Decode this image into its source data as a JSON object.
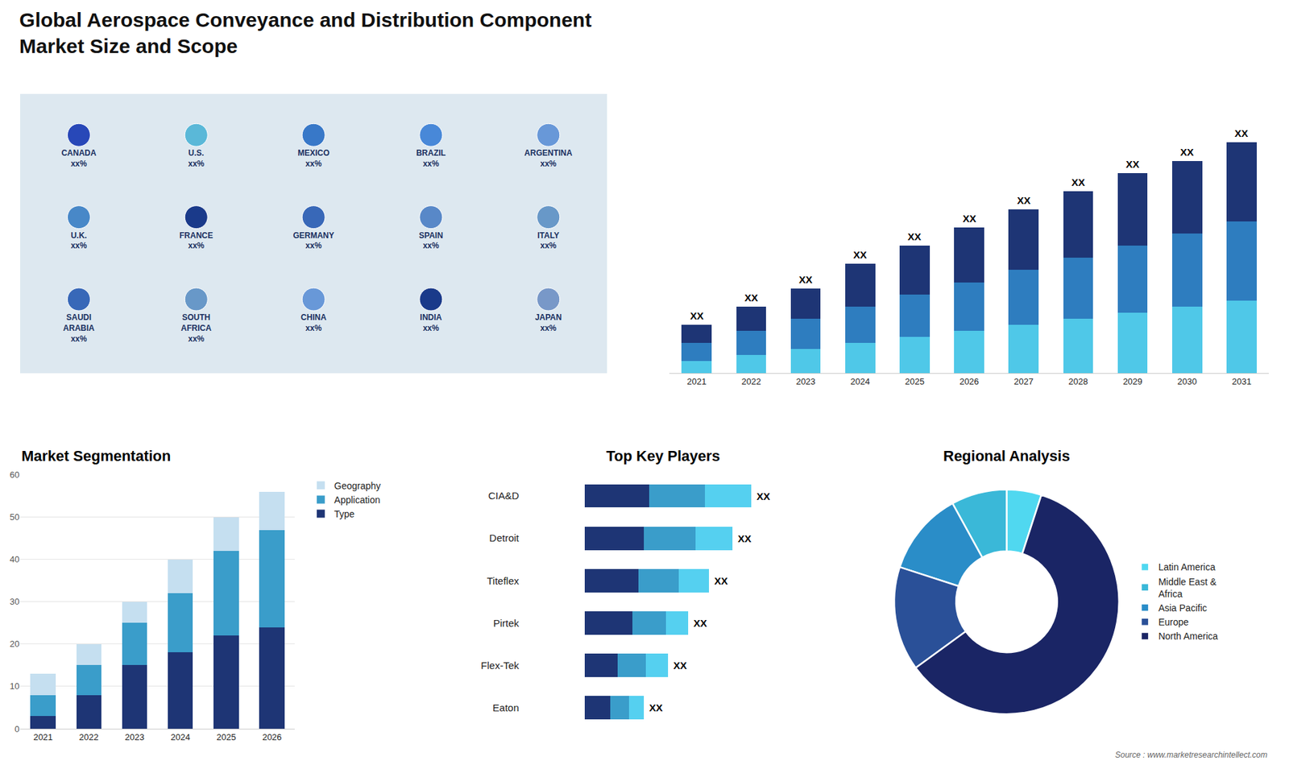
{
  "title": "Global Aerospace Conveyance and Distribution Component\nMarket Size and Scope",
  "annotations": [
    "Source : www.marketresearchintellect.com"
  ],
  "chart_data": [
    {
      "type": "map",
      "annotations": [
        "CANADA\nxx%",
        "U.S.\nxx%",
        "MEXICO\nxx%",
        "BRAZIL\nxx%",
        "ARGENTINA\nxx%",
        "U.K.\nxx%",
        "FRANCE\nxx%",
        "GERMANY\nxx%",
        "SPAIN\nxx%",
        "ITALY\nxx%",
        "SAUDI\nARABIA\nxx%",
        "SOUTH\nAFRICA\nxx%",
        "CHINA\nxx%",
        "INDIA\nxx%",
        "JAPAN\nxx%"
      ],
      "colors": [
        "#2848b8",
        "#5ab8d8",
        "#3878c8",
        "#4888d8",
        "#6898d8",
        "#4888c8",
        "#1a3a8a",
        "#3868b8",
        "#5888c8",
        "#6898c8",
        "#3868b8",
        "#6898c8",
        "#6898d8",
        "#1a3a8a",
        "#7898c8"
      ]
    },
    {
      "type": "bar",
      "stacked": true,
      "categories": [
        "2021",
        "2022",
        "2023",
        "2024",
        "2025",
        "2026",
        "2027",
        "2028",
        "2029",
        "2030",
        "2031"
      ],
      "series": [
        {
          "color": "#4fc8e8",
          "values": [
            2,
            3,
            4,
            5,
            6,
            7,
            8,
            9,
            10,
            11,
            12
          ]
        },
        {
          "color": "#2e7dbf",
          "values": [
            3,
            4,
            5,
            6,
            7,
            8,
            9,
            10,
            11,
            12,
            13
          ]
        },
        {
          "color": "#1e3575",
          "values": [
            3,
            4,
            5,
            7,
            8,
            9,
            10,
            11,
            12,
            12,
            13
          ]
        }
      ],
      "annotations": [
        "XX",
        "XX",
        "XX",
        "XX",
        "XX",
        "XX",
        "XX",
        "XX",
        "XX",
        "XX",
        "XX"
      ],
      "ylim": [
        0,
        46
      ],
      "tick_labels": "x",
      "grid": false
    },
    {
      "type": "bar",
      "stacked": true,
      "title": "Market Segmentation",
      "categories": [
        "2021",
        "2022",
        "2023",
        "2024",
        "2025",
        "2026"
      ],
      "series": [
        {
          "name": "Type",
          "color": "#1e3575",
          "values": [
            3,
            8,
            15,
            18,
            22,
            24
          ]
        },
        {
          "name": "Application",
          "color": "#3a9dca",
          "values": [
            5,
            7,
            10,
            14,
            20,
            23
          ]
        },
        {
          "name": "Geography",
          "color": "#c5dff0",
          "values": [
            5,
            5,
            5,
            8,
            8,
            9
          ]
        }
      ],
      "ylim": [
        0,
        60
      ],
      "yticks": [
        0,
        10,
        20,
        30,
        40,
        50,
        60
      ],
      "grid": true,
      "legend": "right"
    },
    {
      "type": "bar",
      "orientation": "horizontal",
      "stacked": true,
      "title": "Top Key Players",
      "categories": [
        "CIA&D",
        "Detroit",
        "Titeflex",
        "Pirtek",
        "Flex-Tek",
        "Eaton"
      ],
      "series": [
        {
          "color": "#1e3575",
          "values": [
            3.5,
            3.2,
            2.9,
            2.6,
            1.8,
            1.4
          ]
        },
        {
          "color": "#3a9dca",
          "values": [
            3.0,
            2.8,
            2.2,
            1.8,
            1.5,
            1.0
          ]
        },
        {
          "color": "#55d0f0",
          "values": [
            2.5,
            2.0,
            1.6,
            1.2,
            1.2,
            0.8
          ]
        }
      ],
      "annotations": [
        "XX",
        "XX",
        "XX",
        "XX",
        "XX",
        "XX"
      ],
      "xlim": [
        -3.5,
        12
      ],
      "tick_labels": "y",
      "grid": false
    },
    {
      "type": "pie",
      "title": "Regional Analysis",
      "categories": [
        "Latin America",
        "Middle East &\nAfrica",
        "Asia Pacific",
        "Europe",
        "North America"
      ],
      "values": [
        5,
        8,
        12,
        15,
        60
      ],
      "colors": [
        "#50d8f0",
        "#3ab8d8",
        "#2a8dc8",
        "#2a5098",
        "#1a2565"
      ],
      "legend": "right"
    }
  ]
}
